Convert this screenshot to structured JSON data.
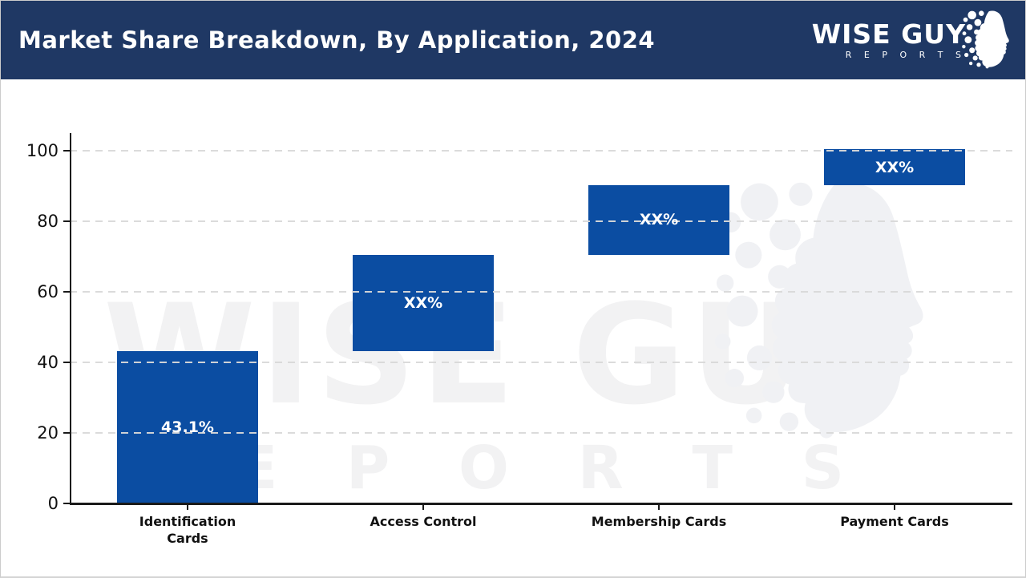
{
  "header": {
    "title": "Market Share Breakdown, By Application, 2024",
    "logo": {
      "name": "WISE GUY",
      "subtitle": "R E P O R T S"
    }
  },
  "watermark": {
    "brand": "WISE GUY",
    "brand_sub": "R E P O R T S"
  },
  "colors": {
    "header_bg": "#1f3864",
    "bar_fill": "#0b4da2",
    "bar_label": "#ffffff",
    "grid_line": "#d9d9d9",
    "axis_line": "#1a1a1a",
    "tick_label": "#111111",
    "category_label": "#111111",
    "watermark_shape": "#f0f1f4"
  },
  "chart_data": {
    "type": "bar",
    "variant": "floating-waterfall",
    "title": "Market Share Breakdown, By Application, 2024",
    "categories": [
      "Identification Cards",
      "Access Control",
      "Membership Cards",
      "Payment Cards"
    ],
    "segments": [
      {
        "category": "Identification Cards",
        "start": 0,
        "end": 43.1,
        "label": "43.1%"
      },
      {
        "category": "Access Control",
        "start": 43.1,
        "end": 70.5,
        "label": "XX%"
      },
      {
        "category": "Membership Cards",
        "start": 70.5,
        "end": 90.2,
        "label": "XX%"
      },
      {
        "category": "Payment Cards",
        "start": 90.2,
        "end": 100.4,
        "label": "XX%"
      }
    ],
    "xlabel": "",
    "ylabel": "",
    "ylim": [
      0,
      100
    ],
    "yticks": [
      0,
      20,
      40,
      60,
      80,
      100
    ],
    "grid": "horizontal-dashed",
    "legend": "none"
  }
}
